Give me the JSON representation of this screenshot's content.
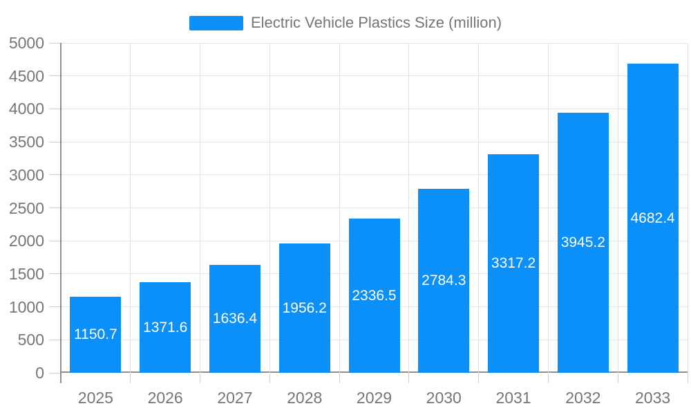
{
  "chart_data": {
    "type": "bar",
    "title": "Electric Vehicle Plastics Size (million)",
    "legend_entries": [
      "Electric Vehicle Plastics Size (million)"
    ],
    "legend_position": "top",
    "categories": [
      "2025",
      "2026",
      "2027",
      "2028",
      "2029",
      "2030",
      "2031",
      "2032",
      "2033"
    ],
    "values": [
      1150.7,
      1371.6,
      1636.4,
      1956.2,
      2336.5,
      2784.3,
      3317.2,
      3945.2,
      4682.4
    ],
    "bar_labels": [
      "1150.7",
      "1371.6",
      "1636.4",
      "1956.2",
      "2336.5",
      "2784.3",
      "3317.2",
      "3945.2",
      "4682.4"
    ],
    "xlabel": "",
    "ylabel": "",
    "ylim": [
      0,
      5000
    ],
    "ytick_step": 500,
    "yticks": [
      "0",
      "500",
      "1000",
      "1500",
      "2000",
      "2500",
      "3000",
      "3500",
      "4000",
      "4500",
      "5000"
    ],
    "grid": true,
    "bar_label_position": "inside-center",
    "colors": {
      "bar": "#0b8ff9",
      "bar_label": "#ffffff",
      "axis_line": "#8f8f8f",
      "grid_line": "#e2e2e2",
      "tick_line": "#cdcdcd",
      "text": "#757575",
      "background": "#ffffff"
    }
  }
}
